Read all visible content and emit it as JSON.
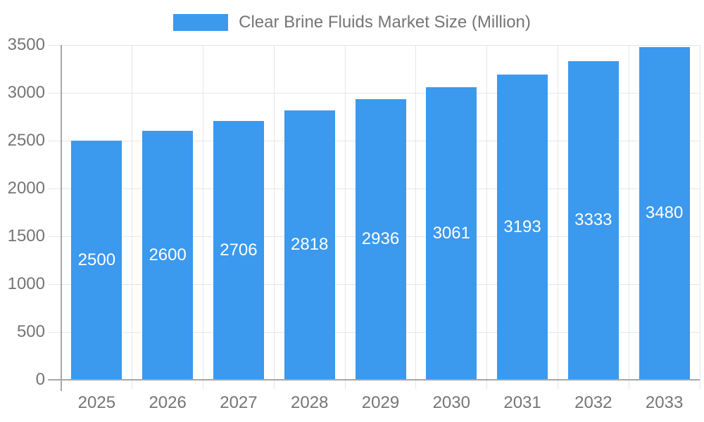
{
  "legend": {
    "position": "top-center",
    "items": [
      {
        "label": "Clear Brine Fluids Market Size (Million)",
        "swatch_color": "#3B99EE"
      }
    ]
  },
  "chart_data": {
    "type": "bar",
    "title": "Clear Brine Fluids Market Size (Million)",
    "categories": [
      "2025",
      "2026",
      "2027",
      "2028",
      "2029",
      "2030",
      "2031",
      "2032",
      "2033"
    ],
    "values": [
      2500,
      2600,
      2706,
      2818,
      2936,
      3061,
      3193,
      3333,
      3480
    ],
    "xlabel": "",
    "ylabel": "",
    "ylim": [
      0,
      3500
    ],
    "ytick_step": 500,
    "yticks": [
      0,
      500,
      1000,
      1500,
      2000,
      2500,
      3000,
      3500
    ],
    "grid": "on",
    "legend_position": "top-center",
    "bar_value_labels_position": "inside-center"
  },
  "colors": {
    "bar": "#3B99EE",
    "bar_value_label": "#FFFFFF",
    "axis_text": "#757575",
    "grid_line": "#E6E6E6",
    "axis_line": "#A6A6A6",
    "background": "#FFFFFF"
  }
}
